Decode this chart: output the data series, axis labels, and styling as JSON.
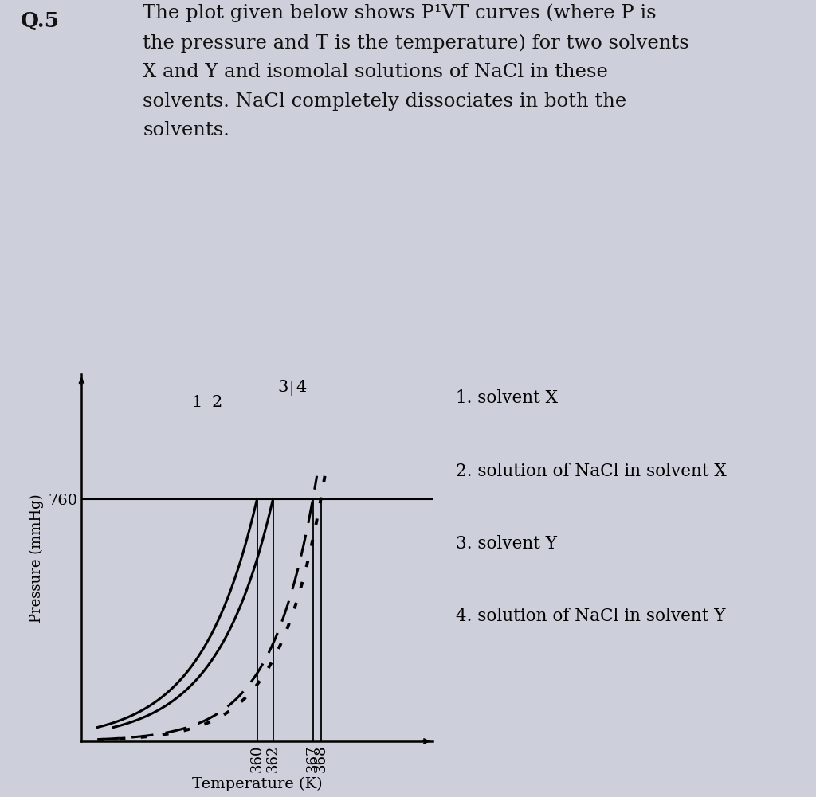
{
  "ylabel": "Pressure (mmHg)",
  "xlabel": "Temperature (K)",
  "p_line": 760,
  "x_ticks": [
    360,
    362,
    367,
    368
  ],
  "legend": [
    "1. solvent X",
    "2. solution of NaCl in solvent X",
    "3. solvent Y",
    "4. solution of NaCl in solvent Y"
  ],
  "bg_color": "#cdd0da",
  "text_color": "#111111",
  "T_min": 338,
  "T_max": 382,
  "P_min": 0,
  "P_max": 1150,
  "q_label": "Q.5",
  "q_text_line1": "The plot given below shows P¹VT curves (where P is",
  "q_text_line2": "the pressure and T is the temperature) for two solvents",
  "q_text_line3": "X and Y and isomolal solutions of NaCl in these",
  "q_text_line4": "solvents. NaCl completely dissociates in both the",
  "q_text_line5": "solvents."
}
